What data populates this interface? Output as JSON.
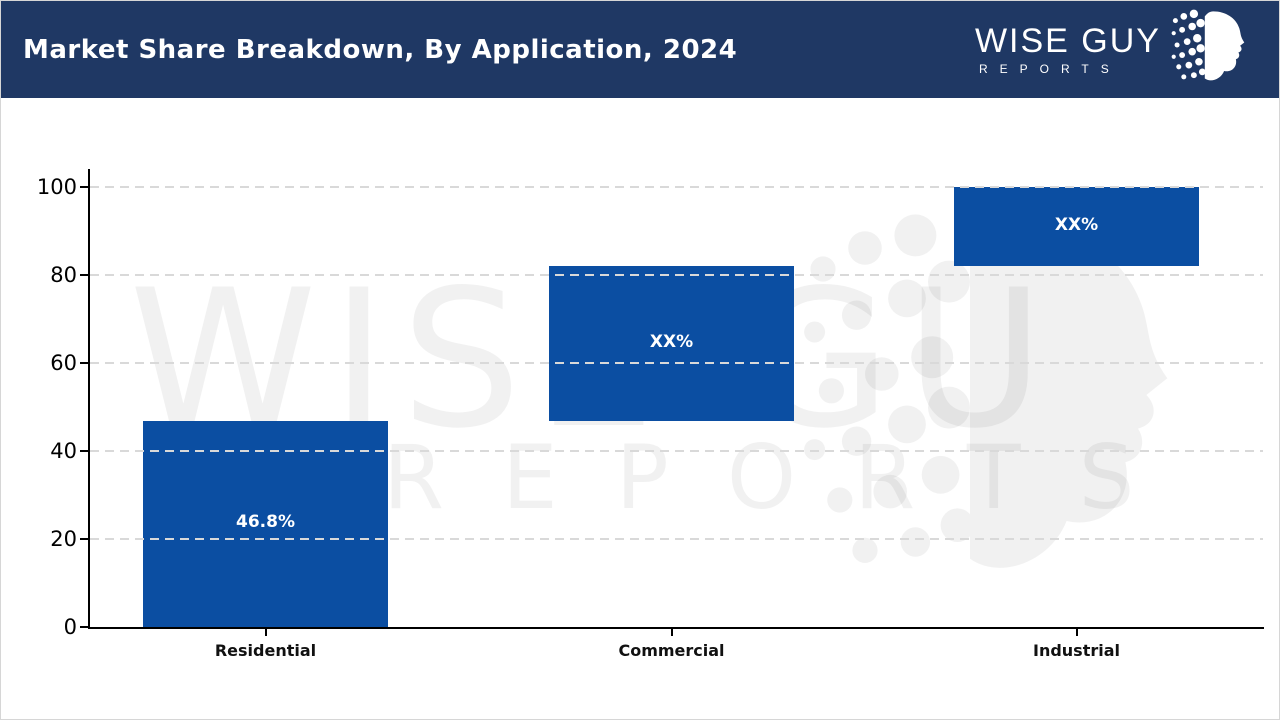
{
  "header": {
    "title": "Market Share Breakdown, By Application, 2024",
    "bg_color": "#1f3864",
    "logo": {
      "line1": "WISE GUY",
      "line2": "REPORTS"
    }
  },
  "watermark": {
    "line1": "WISE GU",
    "line2": "REPORTS"
  },
  "chart_data": {
    "type": "bar",
    "subtype": "floating-waterfall",
    "title": "Market Share Breakdown, By Application, 2024",
    "categories": [
      "Residential",
      "Commercial",
      "Industrial"
    ],
    "segments": [
      {
        "category": "Residential",
        "start": 0,
        "end": 46.8,
        "label": "46.8%"
      },
      {
        "category": "Commercial",
        "start": 46.8,
        "end": 82,
        "label": "XX%"
      },
      {
        "category": "Industrial",
        "start": 82,
        "end": 100,
        "label": "XX%"
      }
    ],
    "ylim": [
      0,
      105
    ],
    "yticks": [
      0,
      20,
      40,
      60,
      80,
      100
    ],
    "xlabel": "",
    "ylabel": "",
    "grid": "horizontal-dashed",
    "legend": null,
    "bar_color": "#0b4ea2",
    "bar_label_color": "#ffffff",
    "axis_color": "#000000",
    "gridline_color": "#d9d9d9"
  }
}
